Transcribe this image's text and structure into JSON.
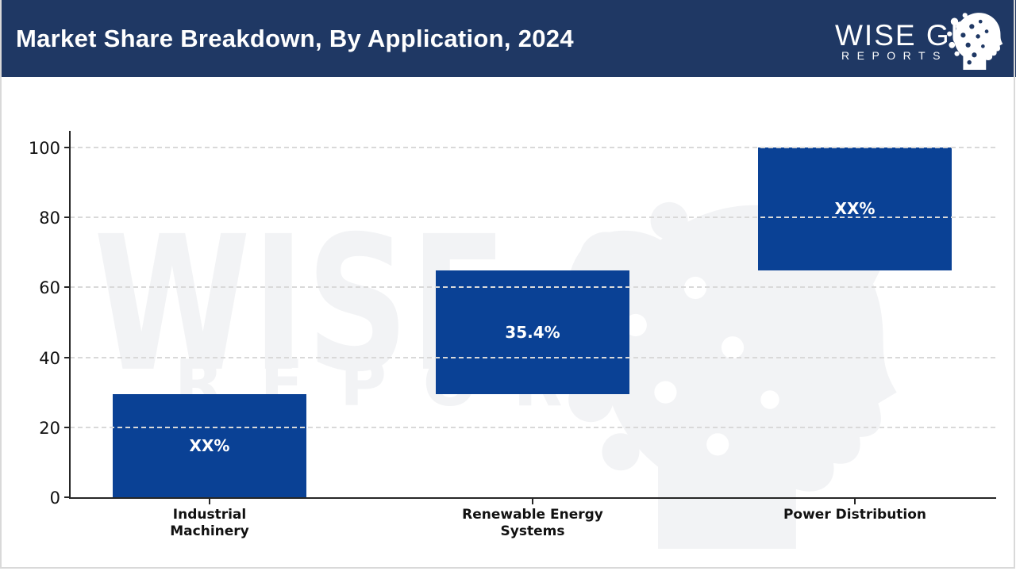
{
  "header": {
    "title": "Market Share Breakdown, By Application, 2024",
    "bg_color": "#1f3864",
    "logo": {
      "line1": "WISE GUY",
      "line2": "REPORTS"
    }
  },
  "watermark": {
    "line1": "WISE GUY",
    "line2": "REPORTS"
  },
  "chart_data": {
    "type": "bar",
    "subtype": "floating-waterfall",
    "title": "Market Share Breakdown, By Application, 2024",
    "categories": [
      "Industrial Machinery",
      "Renewable Energy Systems",
      "Power Distribution"
    ],
    "category_lines": [
      [
        "Industrial",
        "Machinery"
      ],
      [
        "Renewable Energy",
        "Systems"
      ],
      [
        "Power Distribution"
      ]
    ],
    "bars": [
      {
        "category": "Industrial Machinery",
        "start": 0,
        "end": 29.5,
        "label": "XX%"
      },
      {
        "category": "Renewable Energy Systems",
        "start": 29.5,
        "end": 64.9,
        "label": "35.4%"
      },
      {
        "category": "Power Distribution",
        "start": 64.9,
        "end": 100,
        "label": "XX%"
      }
    ],
    "yticks": [
      0,
      20,
      40,
      60,
      80,
      100
    ],
    "ylim": [
      0,
      104.8
    ],
    "xlabel": "",
    "ylabel": "",
    "grid": "horizontal-dashed",
    "legend": "none",
    "bar_color": "#0a4195",
    "grid_color": "#d9d9d9",
    "axis_color": "#262626",
    "value_label_color": "#ffffff"
  }
}
